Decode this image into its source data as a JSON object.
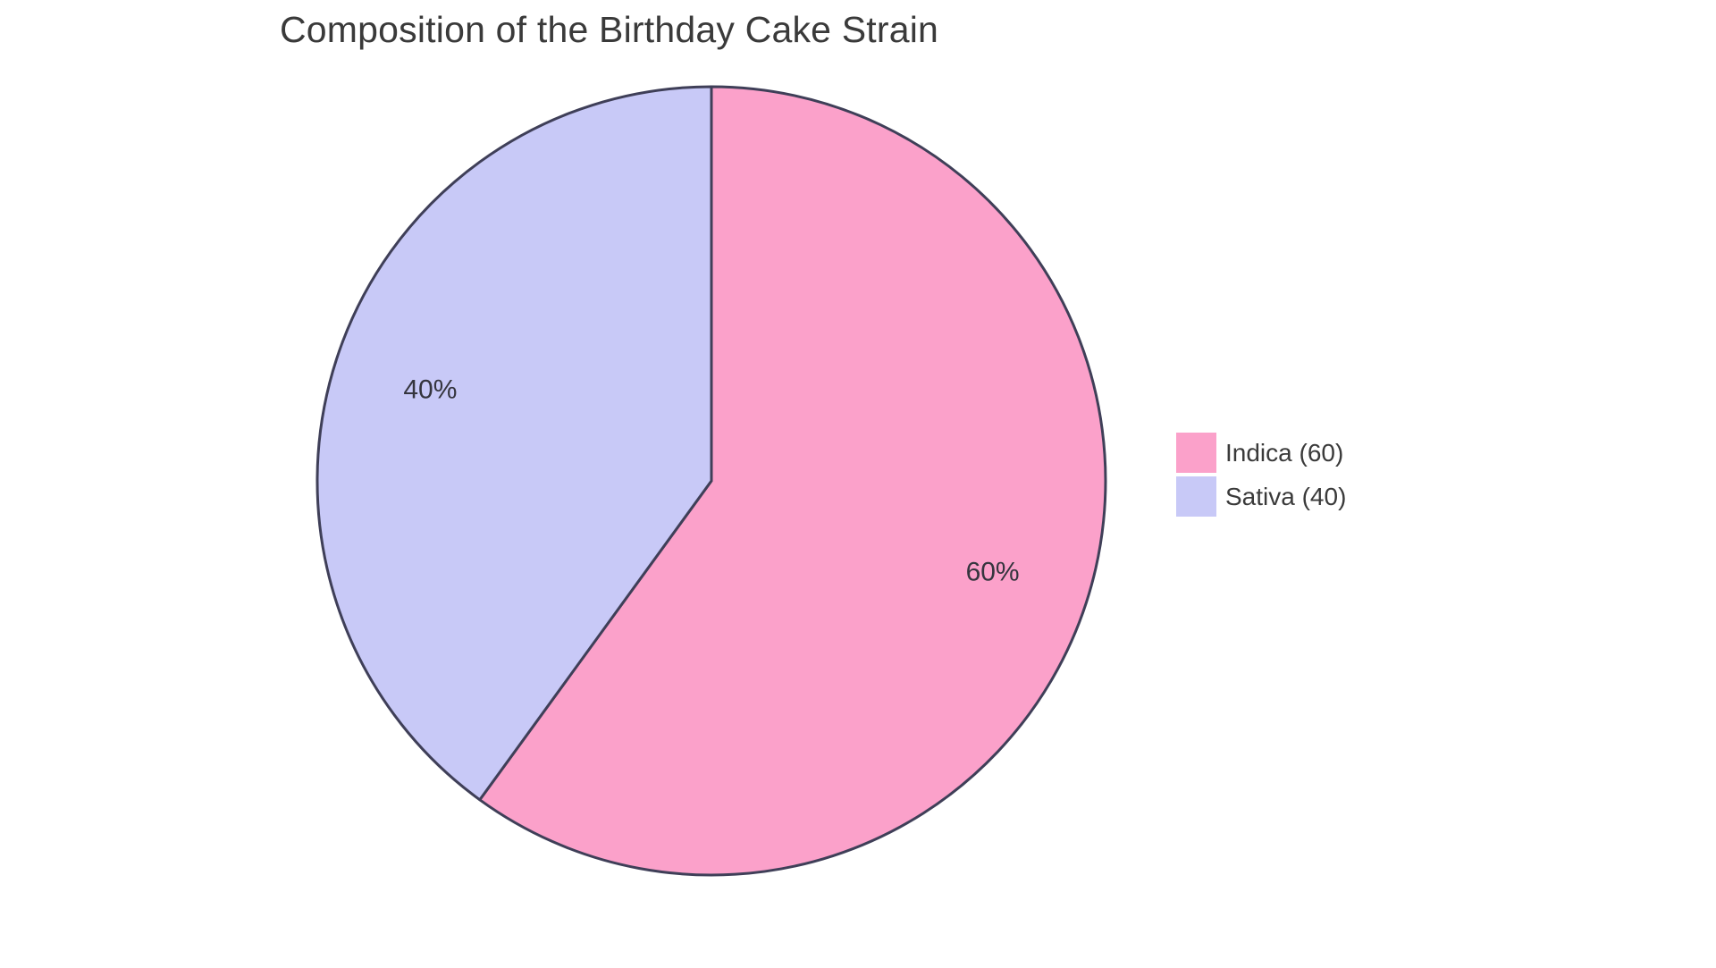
{
  "title": "Composition of the Birthday Cake Strain",
  "chart_data": {
    "type": "pie",
    "title": "Composition of the Birthday Cake Strain",
    "labels": [
      "Indica",
      "Sativa"
    ],
    "values": [
      60,
      40
    ],
    "percent_labels": [
      "60%",
      "40%"
    ],
    "colors": [
      "#FBA1CA",
      "#C8C9F7"
    ],
    "outline_color": "#3F3F58",
    "start_angle": "top",
    "direction": "clockwise",
    "legend": {
      "position": "right",
      "entries": [
        "Indica (60)",
        "Sativa (40)"
      ]
    }
  }
}
